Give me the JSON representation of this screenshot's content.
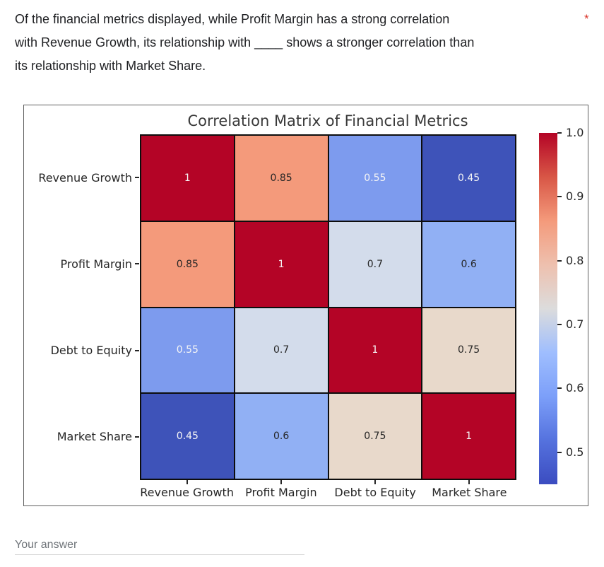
{
  "question": {
    "lines": [
      "Of the financial metrics displayed, while Profit Margin has a strong correlation",
      "with Revenue Growth, its relationship with ____ shows a stronger correlation than",
      "its relationship with Market Share."
    ],
    "required_marker": "*",
    "required_color": "#d93025"
  },
  "chart_data": {
    "type": "heatmap",
    "title": "Correlation Matrix of Financial Metrics",
    "categories": [
      "Revenue Growth",
      "Profit Margin",
      "Debt to Equity",
      "Market Share"
    ],
    "matrix": [
      [
        1.0,
        0.85,
        0.55,
        0.45
      ],
      [
        0.85,
        1.0,
        0.7,
        0.6
      ],
      [
        0.55,
        0.7,
        1.0,
        0.75
      ],
      [
        0.45,
        0.6,
        0.75,
        1.0
      ]
    ],
    "cell_labels": [
      [
        "1",
        "0.85",
        "0.55",
        "0.45"
      ],
      [
        "0.85",
        "1",
        "0.7",
        "0.6"
      ],
      [
        "0.55",
        "0.7",
        "1",
        "0.75"
      ],
      [
        "0.45",
        "0.6",
        "0.75",
        "1"
      ]
    ],
    "cell_colors": [
      [
        "#b40426",
        "#f49a7b",
        "#7d9bee",
        "#3e53b9"
      ],
      [
        "#f49a7b",
        "#b40426",
        "#d3dceb",
        "#91b0f4"
      ],
      [
        "#7d9bee",
        "#d3dceb",
        "#b40426",
        "#e8d9cb"
      ],
      [
        "#3e53b9",
        "#91b0f4",
        "#e8d9cb",
        "#b40426"
      ]
    ],
    "cell_text_colors": [
      [
        "#f5f5f5",
        "#262626",
        "#f5f5f5",
        "#f5f5f5"
      ],
      [
        "#262626",
        "#f5f5f5",
        "#262626",
        "#262626"
      ],
      [
        "#f5f5f5",
        "#262626",
        "#f5f5f5",
        "#262626"
      ],
      [
        "#f5f5f5",
        "#262626",
        "#262626",
        "#f5f5f5"
      ]
    ],
    "colormap": "coolwarm",
    "grid": "off",
    "colorbar": {
      "vmin": 0.45,
      "vmax": 1.0,
      "ticks": [
        "1.0",
        "0.9",
        "0.8",
        "0.7",
        "0.6",
        "0.5"
      ],
      "tick_values": [
        1.0,
        0.9,
        0.8,
        0.7,
        0.6,
        0.5
      ],
      "position": "right",
      "gradient": [
        {
          "pos": 0,
          "color": "#b40426"
        },
        {
          "pos": 12.5,
          "color": "#d85646"
        },
        {
          "pos": 25,
          "color": "#f49a7b"
        },
        {
          "pos": 37.5,
          "color": "#eec0ae"
        },
        {
          "pos": 50,
          "color": "#dcdcdc"
        },
        {
          "pos": 62.5,
          "color": "#9fbefe"
        },
        {
          "pos": 75,
          "color": "#7c9ff9"
        },
        {
          "pos": 87.5,
          "color": "#5572de"
        },
        {
          "pos": 100,
          "color": "#3b4cc0"
        }
      ]
    }
  },
  "answer": {
    "placeholder": "Your answer"
  }
}
